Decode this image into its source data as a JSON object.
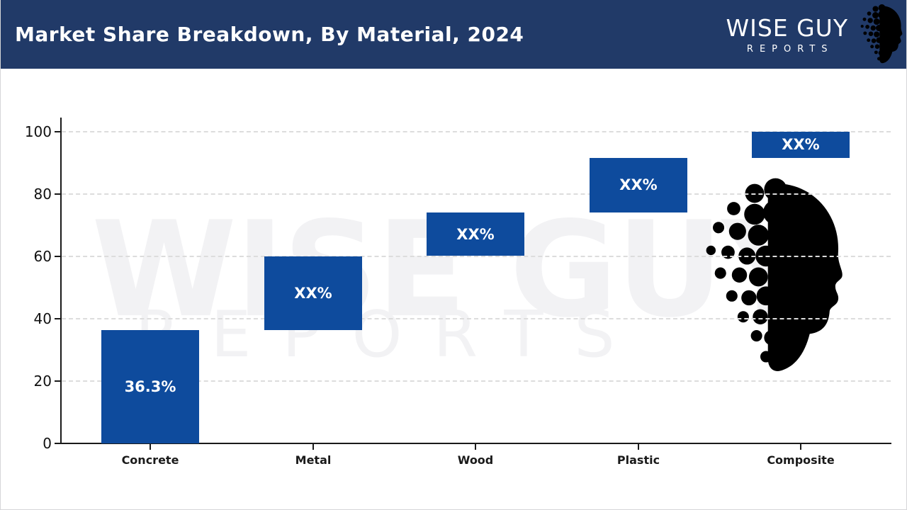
{
  "header": {
    "title": "Market Share Breakdown, By Material, 2024",
    "bg_color": "#213a68",
    "logo": {
      "wordmark": "WISE GUY",
      "subtext": "REPORTS",
      "icon": "dotted-head-profile-icon"
    }
  },
  "watermark": {
    "wordmark": "WISE GUY",
    "subtext": "REPORTS",
    "icon": "dotted-head-profile-icon",
    "color": "#f2f2f4"
  },
  "chart_data": {
    "type": "bar",
    "subtype": "waterfall",
    "title": "Market Share Breakdown, By Material, 2024",
    "categories": [
      "Concrete",
      "Metal",
      "Wood",
      "Plastic",
      "Composite"
    ],
    "segments": [
      {
        "category": "Concrete",
        "start": 0,
        "end": 36.3,
        "label": "36.3%"
      },
      {
        "category": "Metal",
        "start": 36.3,
        "end": 59.9,
        "label": "XX%"
      },
      {
        "category": "Wood",
        "start": 60.2,
        "end": 74.1,
        "label": "XX%"
      },
      {
        "category": "Plastic",
        "start": 74.1,
        "end": 91.6,
        "label": "XX%"
      },
      {
        "category": "Composite",
        "start": 91.6,
        "end": 100,
        "label": "XX%"
      }
    ],
    "y_ticks": [
      0,
      20,
      40,
      60,
      80,
      100
    ],
    "ylim": [
      0,
      105
    ],
    "xlabel": "",
    "ylabel": "",
    "grid": "horizontal-dashed",
    "legend": "none",
    "bar_color": "#0e4b9d",
    "bar_label_color": "#ffffff"
  }
}
